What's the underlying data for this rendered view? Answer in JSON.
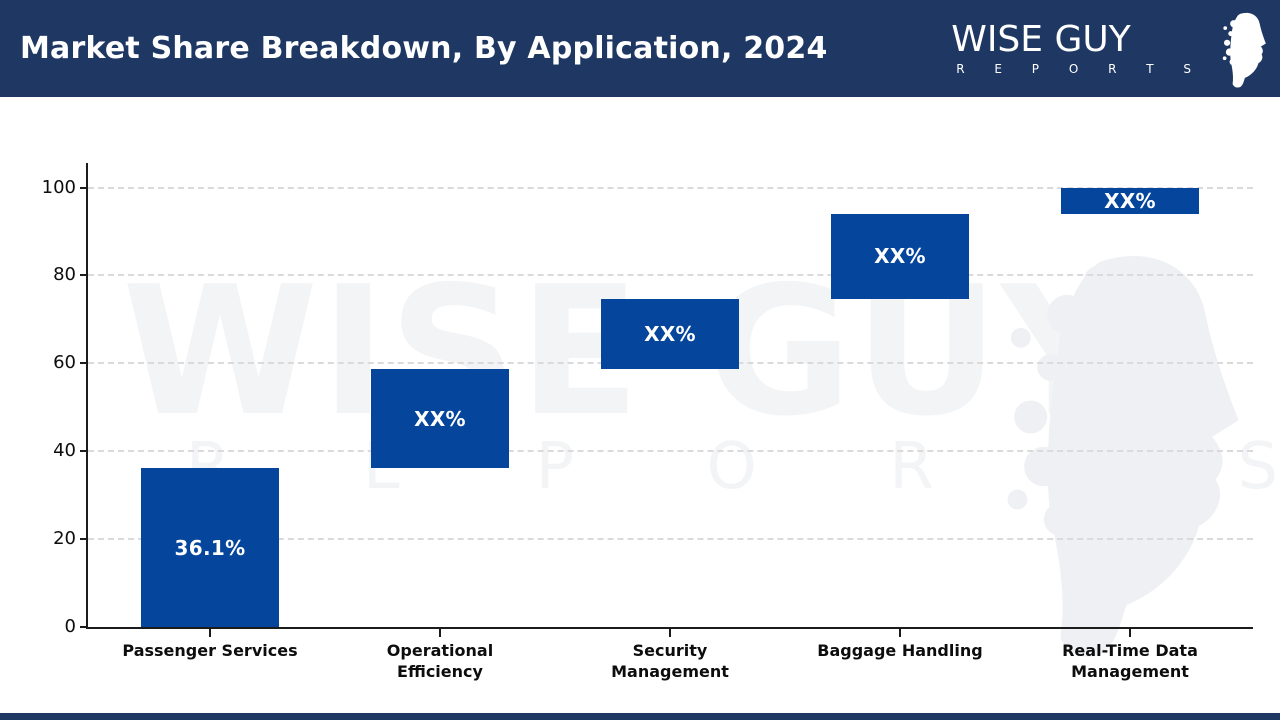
{
  "header": {
    "title": "Market Share Breakdown, By Application, 2024",
    "logo": {
      "line1": "WISE GUY",
      "line2": "R E P O R T S"
    }
  },
  "watermark": {
    "line1": "WISE GUY",
    "line2": "R E P O R T S"
  },
  "colors": {
    "header_navy": "#1f3863",
    "bar_blue": "#05459c",
    "bar_label_white": "#ffffff",
    "gridline_gray": "#dadada",
    "watermark_gray": "#f3f4f6"
  },
  "chart_data": {
    "type": "bar",
    "subtype": "waterfall",
    "title": "Market Share Breakdown, By Application, 2024",
    "xlabel": "",
    "ylabel": "",
    "ylim": [
      0,
      105
    ],
    "yticks": [
      0,
      20,
      40,
      60,
      80,
      100
    ],
    "grid": "horizontal dashed",
    "legend": "none",
    "categories": [
      "Passenger Services",
      "Operational\nEfficiency",
      "Security\nManagement",
      "Baggage Handling",
      "Real-Time Data\nManagement"
    ],
    "segments": [
      {
        "category": "Passenger Services",
        "start": 0,
        "end": 36.1,
        "label": "36.1%"
      },
      {
        "category": "Operational Efficiency",
        "start": 36.1,
        "end": 58.7,
        "label": "XX%"
      },
      {
        "category": "Security Management",
        "start": 58.7,
        "end": 74.7,
        "label": "XX%"
      },
      {
        "category": "Baggage Handling",
        "start": 74.7,
        "end": 94.0,
        "label": "XX%"
      },
      {
        "category": "Real-Time Data Management",
        "start": 94.0,
        "end": 100.0,
        "label": "XX%"
      }
    ]
  }
}
